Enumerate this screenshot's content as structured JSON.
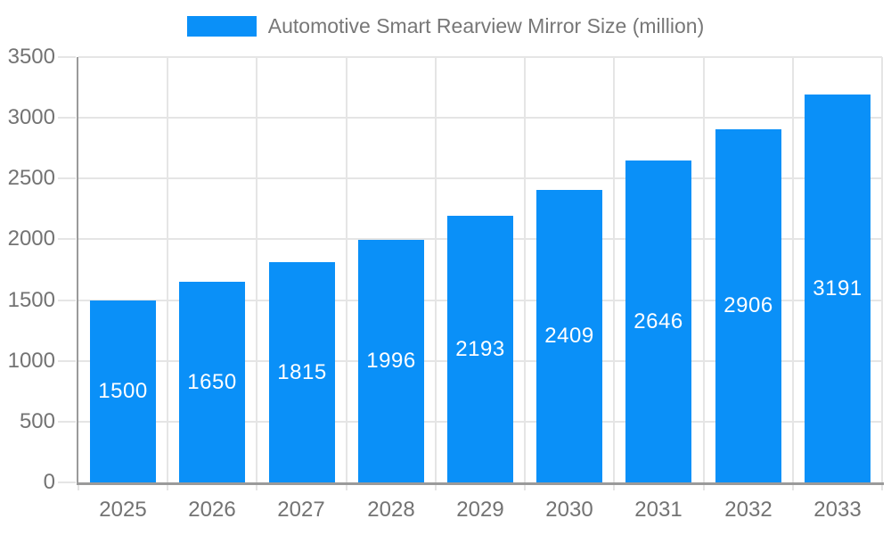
{
  "chart_data": {
    "type": "bar",
    "title": "",
    "categories": [
      "2025",
      "2026",
      "2027",
      "2028",
      "2029",
      "2030",
      "2031",
      "2032",
      "2033"
    ],
    "series": [
      {
        "name": "Automotive Smart Rearview Mirror Size (million)",
        "values": [
          1500,
          1650,
          1815,
          1996,
          2193,
          2409,
          2646,
          2906,
          3191
        ]
      }
    ],
    "xlabel": "",
    "ylabel": "",
    "ylim": [
      0,
      3500
    ],
    "yticks": [
      0,
      500,
      1000,
      1500,
      2000,
      2500,
      3000,
      3500
    ],
    "grid": true,
    "legend_position": "top",
    "bar_value_labels_shown": true,
    "colors": {
      "bar": "#0a90f8",
      "bar_value_label": "#ffffff",
      "axis_tick_label": "#737373",
      "legend_text": "#777777",
      "gridline": "#e5e5e5",
      "axis_line": "#9a9a9a",
      "background": "#ffffff"
    }
  }
}
